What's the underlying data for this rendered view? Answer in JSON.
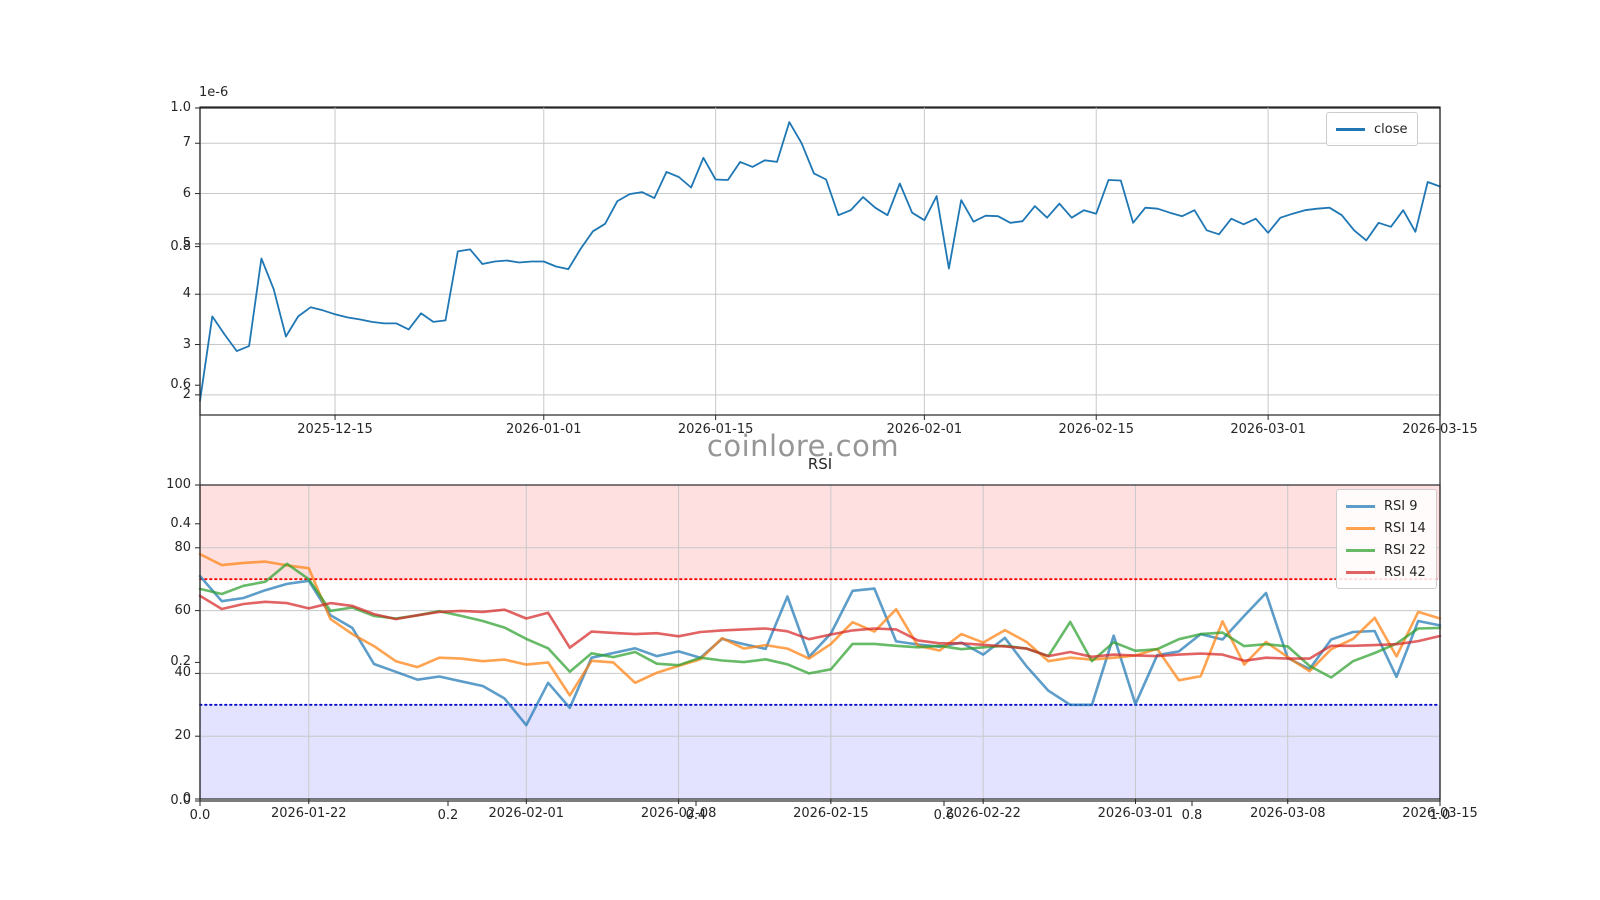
{
  "watermark": "coinlore.com",
  "background_axes": {
    "xtick_labels": [
      "0.0",
      "0.2",
      "0.4",
      "0.6",
      "0.8",
      "1.0"
    ],
    "ytick_labels": [
      "0.0",
      "0.2",
      "0.4",
      "0.6",
      "0.8",
      "1.0"
    ]
  },
  "chart_data": [
    {
      "id": "price",
      "type": "line",
      "title": "",
      "y_offset_text": "1e-6",
      "x_start_date": "2025-12-04",
      "x_freq": "daily",
      "ylim": [
        1.6,
        7.72
      ],
      "yticks": [
        {
          "v": 2,
          "label": "2"
        },
        {
          "v": 3,
          "label": "3"
        },
        {
          "v": 4,
          "label": "4"
        },
        {
          "v": 5,
          "label": "5"
        },
        {
          "v": 6,
          "label": "6"
        },
        {
          "v": 7,
          "label": "7"
        }
      ],
      "xticks": [
        {
          "pos": 11,
          "label": "2025-12-15"
        },
        {
          "pos": 28,
          "label": "2026-01-01"
        },
        {
          "pos": 42,
          "label": "2026-01-15"
        },
        {
          "pos": 59,
          "label": "2026-02-01"
        },
        {
          "pos": 73,
          "label": "2026-02-15"
        },
        {
          "pos": 87,
          "label": "2026-03-01"
        },
        {
          "pos": 101,
          "label": "2026-03-15"
        }
      ],
      "grid": true,
      "legend_loc": "upper right",
      "series": [
        {
          "name": "close",
          "color": "#1f77b4",
          "opacity": 1,
          "width": 1.8,
          "values": [
            1.88,
            3.56,
            3.2,
            2.87,
            2.97,
            4.71,
            4.1,
            3.16,
            3.56,
            3.74,
            3.68,
            3.6,
            3.54,
            3.5,
            3.45,
            3.42,
            3.42,
            3.3,
            3.62,
            3.45,
            3.48,
            4.85,
            4.89,
            4.6,
            4.65,
            4.67,
            4.63,
            4.65,
            4.65,
            4.55,
            4.5,
            4.9,
            5.25,
            5.4,
            5.85,
            5.99,
            6.03,
            5.91,
            6.43,
            6.33,
            6.12,
            6.71,
            6.28,
            6.27,
            6.63,
            6.53,
            6.66,
            6.63,
            7.42,
            7.0,
            6.4,
            6.28,
            5.57,
            5.67,
            5.93,
            5.72,
            5.57,
            6.2,
            5.62,
            5.47,
            5.95,
            4.51,
            5.87,
            5.44,
            5.56,
            5.55,
            5.42,
            5.45,
            5.75,
            5.52,
            5.8,
            5.52,
            5.67,
            5.6,
            6.27,
            6.26,
            5.42,
            5.72,
            5.7,
            5.62,
            5.55,
            5.67,
            5.27,
            5.19,
            5.5,
            5.39,
            5.5,
            5.22,
            5.52,
            5.6,
            5.67,
            5.7,
            5.72,
            5.57,
            5.27,
            5.07,
            5.42,
            5.34,
            5.67,
            5.24,
            6.23,
            6.14
          ]
        }
      ]
    },
    {
      "id": "rsi",
      "type": "line",
      "title": "RSI",
      "x_start_date": "2026-01-17",
      "x_freq": "daily",
      "ylim": [
        0,
        100
      ],
      "yticks": [
        {
          "v": 0,
          "label": "0"
        },
        {
          "v": 20,
          "label": "20"
        },
        {
          "v": 40,
          "label": "40"
        },
        {
          "v": 60,
          "label": "60"
        },
        {
          "v": 80,
          "label": "80"
        },
        {
          "v": 100,
          "label": "100"
        }
      ],
      "xticks": [
        {
          "pos": 5,
          "label": "2026-01-22"
        },
        {
          "pos": 15,
          "label": "2026-02-01"
        },
        {
          "pos": 22,
          "label": "2026-02-08"
        },
        {
          "pos": 29,
          "label": "2026-02-15"
        },
        {
          "pos": 36,
          "label": "2026-02-22"
        },
        {
          "pos": 43,
          "label": "2026-03-01"
        },
        {
          "pos": 50,
          "label": "2026-03-08"
        },
        {
          "pos": 57,
          "label": "2026-03-15"
        }
      ],
      "grid": true,
      "legend_loc": "upper right",
      "hlines": [
        {
          "y": 70,
          "color": "#ff0000",
          "style": "dotted",
          "name": "overbought-line"
        },
        {
          "y": 30,
          "color": "#0000cc",
          "style": "dotted",
          "name": "oversold-line"
        }
      ],
      "bands": [
        {
          "from": 70,
          "to": 100,
          "color": "rgba(255,0,0,0.12)",
          "name": "overbought-zone"
        },
        {
          "from": 0,
          "to": 30,
          "color": "rgba(0,0,255,0.11)",
          "name": "oversold-zone"
        }
      ],
      "series": [
        {
          "name": "RSI 9",
          "color": "#1f77b4",
          "opacity": 0.72,
          "width": 2.6,
          "values": [
            71,
            63,
            64,
            66.5,
            68.5,
            69.5,
            58.5,
            54.5,
            43,
            40.5,
            38,
            39,
            37.5,
            36,
            32,
            23.5,
            37,
            29,
            45,
            46.5,
            48,
            45.5,
            47,
            45,
            51,
            49.3,
            47.8,
            64.5,
            45.3,
            52.7,
            66.3,
            67,
            50.2,
            49.2,
            48.5,
            49.8,
            46,
            51.3,
            42.2,
            34.5,
            30,
            30,
            52,
            30.2,
            45.8,
            47,
            52.5,
            50.8,
            58.3,
            65.6,
            44.9,
            41.4,
            50.8,
            53.2,
            53.5,
            38.9,
            56.7,
            55.3
          ]
        },
        {
          "name": "RSI 14",
          "color": "#ff7f0e",
          "opacity": 0.72,
          "width": 2.6,
          "values": [
            78,
            74.5,
            75.2,
            75.6,
            74.4,
            73.5,
            57.3,
            52.5,
            48.7,
            43.9,
            42,
            45,
            44.7,
            43.9,
            44.4,
            42.8,
            43.5,
            33,
            44,
            43.5,
            37,
            40.2,
            42.4,
            44.5,
            51.2,
            47.9,
            49,
            47.9,
            44.7,
            49.4,
            56.3,
            53.3,
            60.4,
            48.8,
            47.3,
            52.5,
            49.8,
            53.8,
            50,
            43.9,
            45,
            44.4,
            45,
            45.7,
            47.8,
            37.8,
            39.1,
            56.6,
            42.8,
            50,
            45.2,
            40.7,
            47.7,
            51,
            57.7,
            45.4,
            59.6,
            57.5
          ]
        },
        {
          "name": "RSI 22",
          "color": "#2ca02c",
          "opacity": 0.72,
          "width": 2.6,
          "values": [
            66.9,
            65.3,
            67.9,
            69.2,
            74.9,
            70,
            59.9,
            61,
            58.3,
            57.5,
            58.5,
            59.8,
            58.3,
            56.7,
            54.6,
            51,
            48,
            40.5,
            46.4,
            45.2,
            46.8,
            43.1,
            42.6,
            45,
            44.1,
            43.6,
            44.5,
            42.9,
            40,
            41.3,
            49.4,
            49.4,
            48.8,
            48.3,
            48.8,
            47.7,
            48.3,
            48.8,
            47.9,
            45.5,
            56.4,
            43.9,
            49.9,
            47.2,
            47.7,
            50.9,
            52.5,
            53,
            48.7,
            49.3,
            48.6,
            42.4,
            38.7,
            43.9,
            46.5,
            49.5,
            54.3,
            54.5
          ]
        },
        {
          "name": "RSI 42",
          "color": "#d62728",
          "opacity": 0.72,
          "width": 2.6,
          "values": [
            64.7,
            60.5,
            62.1,
            62.8,
            62.4,
            60.7,
            62.4,
            61.5,
            58.9,
            57.3,
            58.5,
            59.6,
            59.9,
            59.6,
            60.3,
            57.5,
            59.3,
            48.2,
            53.3,
            52.9,
            52.5,
            52.8,
            51.8,
            53.2,
            53.7,
            54,
            54.3,
            53.4,
            50.9,
            52.4,
            53.7,
            54.3,
            54,
            50.5,
            49.6,
            49.6,
            49.1,
            48.6,
            47.9,
            45.5,
            46.8,
            45.3,
            46,
            45.7,
            45.5,
            46,
            46.3,
            46,
            44,
            45,
            44.7,
            44.7,
            48.8,
            48.8,
            49,
            49.3,
            50.3,
            51.9
          ]
        }
      ]
    }
  ]
}
